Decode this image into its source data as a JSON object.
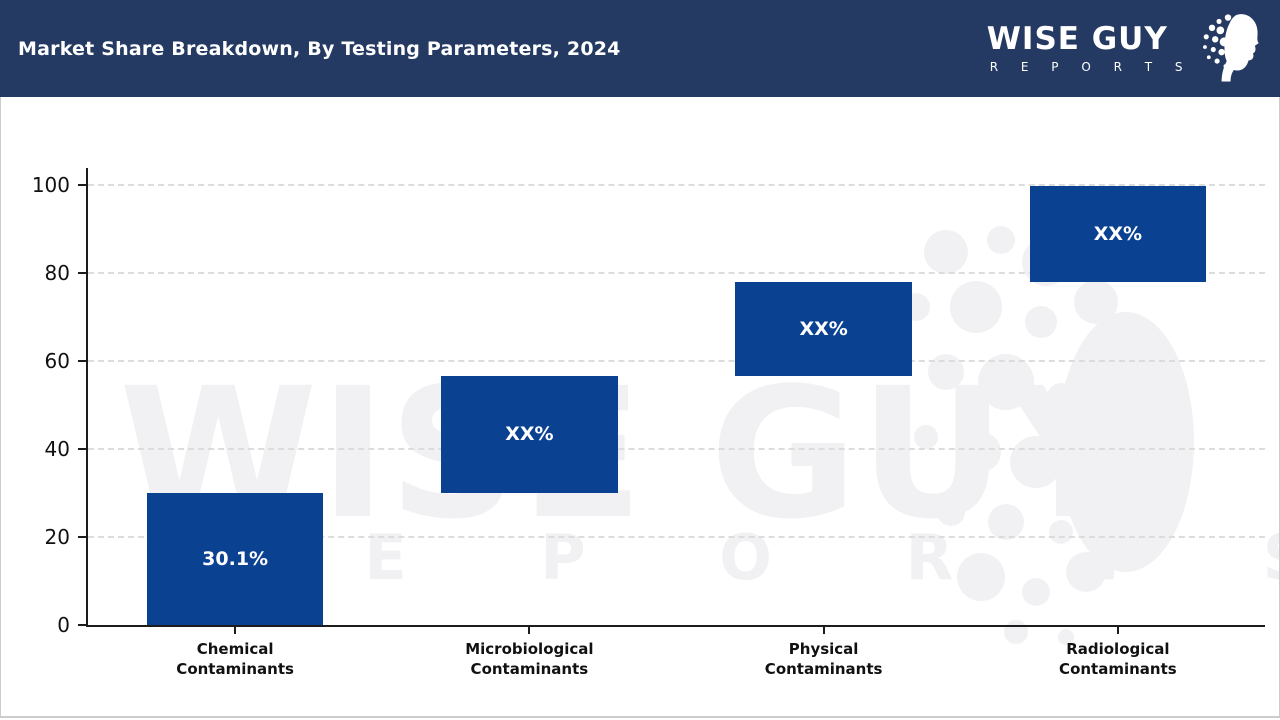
{
  "header": {
    "title": "Market Share Breakdown, By Testing Parameters, 2024",
    "bg_color": "#243a63",
    "logo": {
      "primary": "WISE GUY",
      "secondary": "R E P O R T S"
    }
  },
  "watermark": {
    "line1": "WISE GUY",
    "line2": "R E P O R T S"
  },
  "chart_data": {
    "type": "bar",
    "subtype": "floating-waterfall",
    "title": "Market Share Breakdown, By Testing Parameters, 2024",
    "categories": [
      [
        "Chemical",
        "Contaminants"
      ],
      [
        "Microbiological",
        "Contaminants"
      ],
      [
        "Physical",
        "Contaminants"
      ],
      [
        "Radiological",
        "Contaminants"
      ]
    ],
    "segments": [
      {
        "start": 0,
        "end": 30.1,
        "label": "30.1%"
      },
      {
        "start": 30.1,
        "end": 56.6,
        "label": "XX%"
      },
      {
        "start": 56.6,
        "end": 78.0,
        "label": "XX%"
      },
      {
        "start": 78.0,
        "end": 99.8,
        "label": "XX%"
      }
    ],
    "yticks": [
      0,
      20,
      40,
      60,
      80,
      100
    ],
    "ylim": [
      0,
      100
    ],
    "bar_color": "#0a4191",
    "bar_label_color": "#ffffff",
    "grid": "horizontal-dashed",
    "legend": "none"
  }
}
